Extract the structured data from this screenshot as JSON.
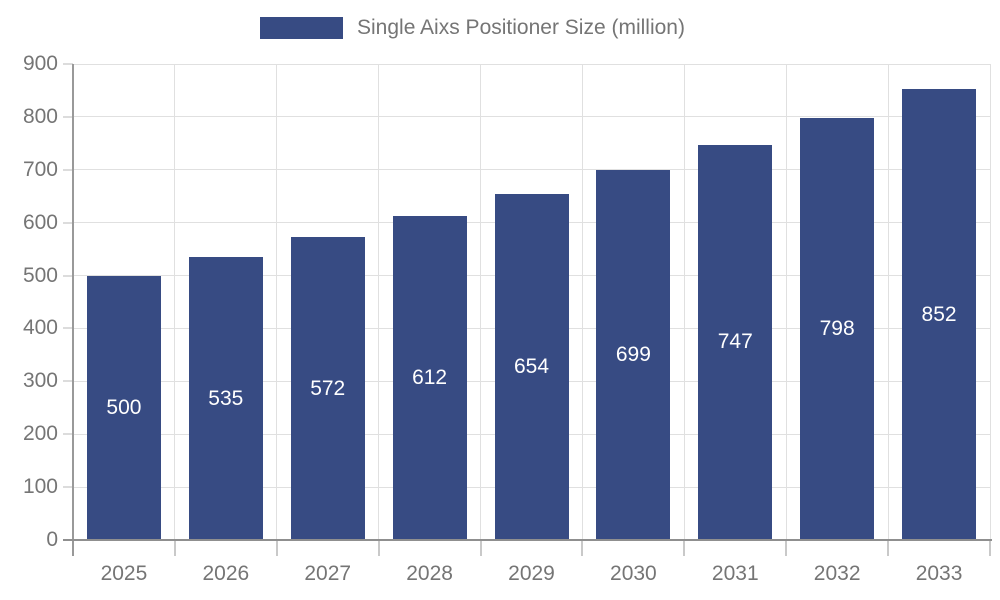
{
  "chart_data": {
    "type": "bar",
    "title": "Single Aixs Positioner Size (million)",
    "legend": {
      "position": "top",
      "label": "Single Aixs Positioner Size (million)"
    },
    "categories": [
      "2025",
      "2026",
      "2027",
      "2028",
      "2029",
      "2030",
      "2031",
      "2032",
      "2033"
    ],
    "series": [
      {
        "name": "Single Aixs Positioner Size (million)",
        "values": [
          500,
          535,
          572,
          612,
          654,
          699,
          747,
          798,
          852
        ]
      }
    ],
    "value_labels": {
      "visible": true,
      "position": "inside-middle",
      "color": "#ffffff"
    },
    "xlabel": "",
    "ylabel": "",
    "ylim": [
      0,
      900
    ],
    "yticks": [
      0,
      100,
      200,
      300,
      400,
      500,
      600,
      700,
      800,
      900
    ],
    "grid": true,
    "colors": {
      "bar": "#374b83",
      "axis_text": "#757575",
      "gridline": "#e0e0e0",
      "axis_line": "#8f8f8f",
      "tick": "#c9c9c9",
      "background": "#ffffff"
    }
  }
}
